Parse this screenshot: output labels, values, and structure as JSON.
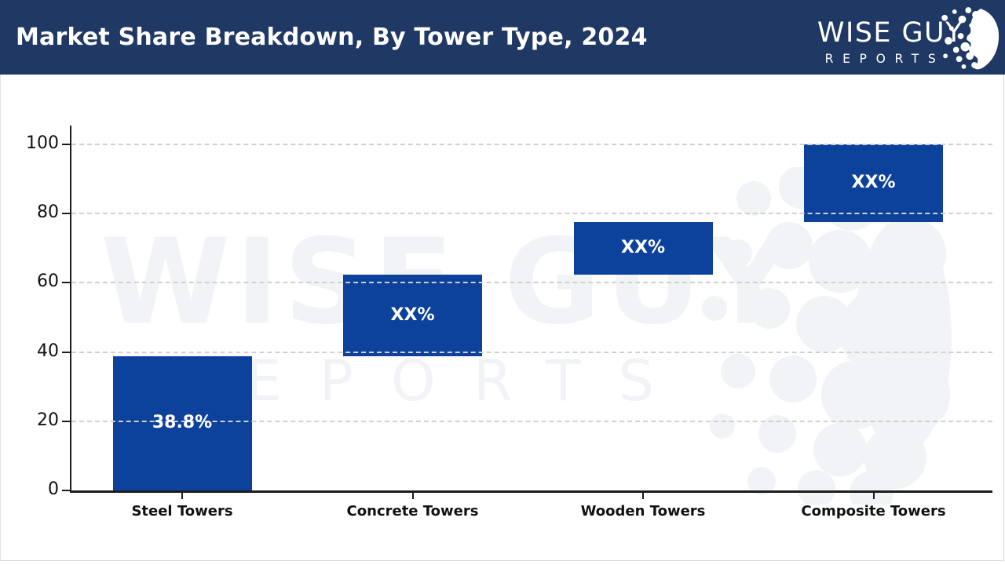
{
  "header": {
    "title": "Market Share Breakdown, By Tower Type, 2024",
    "logo": {
      "wordmark": "WISE GUY",
      "subtext": "REPORTS",
      "icon": "dotted-head-profile"
    }
  },
  "watermark": {
    "line1": "WISE GUY",
    "line2": "REPORTS",
    "icon": "dotted-head-profile"
  },
  "chart_data": {
    "type": "bar",
    "variant": "waterfall",
    "title": "Market Share Breakdown, By Tower Type, 2024",
    "categories": [
      "Steel Towers",
      "Concrete Towers",
      "Wooden Towers",
      "Composite Towers"
    ],
    "series": [
      {
        "name": "Market Share (%)",
        "segments": [
          {
            "category": "Steel Towers",
            "base": 0,
            "top": 38.8,
            "label": "38.8%"
          },
          {
            "category": "Concrete Towers",
            "base": 38.8,
            "top": 62.4,
            "label": "XX%"
          },
          {
            "category": "Wooden Towers",
            "base": 62.4,
            "top": 77.6,
            "label": "XX%"
          },
          {
            "category": "Composite Towers",
            "base": 77.6,
            "top": 100,
            "label": "XX%"
          }
        ]
      }
    ],
    "xlabel": "",
    "ylabel": "",
    "ylim": [
      0,
      105
    ],
    "yticks": [
      0,
      20,
      40,
      60,
      80,
      100
    ],
    "grid": "horizontal-dashed",
    "legend": "none",
    "colors": {
      "bar": "#0c419c",
      "bar_label": "#ffffff",
      "axis": "#1c1c1c",
      "tick_text": "#111111",
      "gridline": "#d0d0d0",
      "header_bg": "#1f3864",
      "header_text": "#ffffff",
      "watermark": "#f2f3f6"
    }
  }
}
